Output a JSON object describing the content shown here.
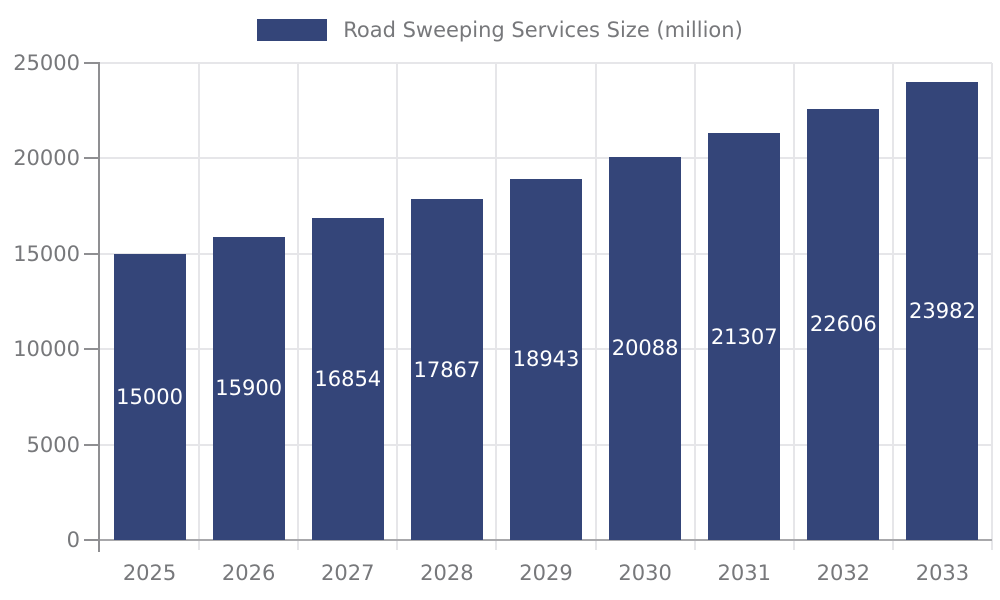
{
  "legend": {
    "label": "Road Sweeping Services Size (million)"
  },
  "chart_data": {
    "type": "bar",
    "title": "Road Sweeping Services Size (million)",
    "categories": [
      "2025",
      "2026",
      "2027",
      "2028",
      "2029",
      "2030",
      "2031",
      "2032",
      "2033"
    ],
    "values": [
      15000,
      15900,
      16854,
      17867,
      18943,
      20088,
      21307,
      22606,
      23982
    ],
    "xlabel": "",
    "ylabel": "",
    "ylim": [
      0,
      25000
    ],
    "yticks": [
      0,
      5000,
      10000,
      15000,
      20000,
      25000
    ],
    "grid": true,
    "legend_position": "top-center",
    "show_value_labels": true,
    "bar_color": "#344579",
    "value_label_color": "#ffffff",
    "axis_text_color": "#77787b",
    "grid_color": "#e6e6e9",
    "y_axis_line_color": "#8f8f92",
    "x_axis_line_color": "#a8a8ab"
  }
}
